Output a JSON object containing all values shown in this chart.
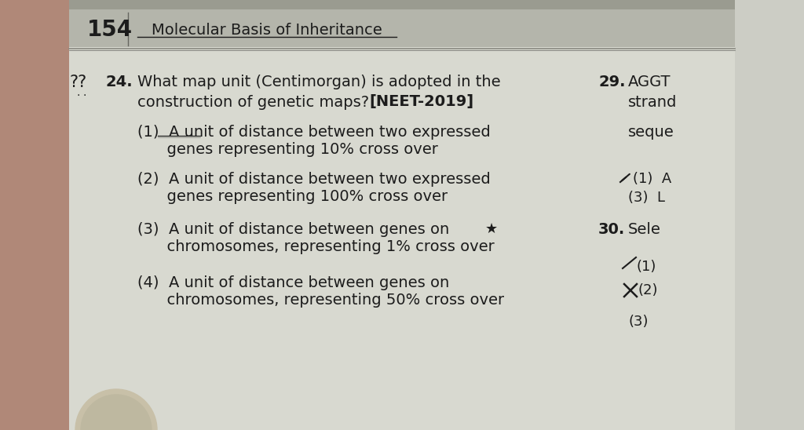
{
  "bg_left_color": "#b8907a",
  "bg_page_color": "#dcddd5",
  "bg_right_color": "#c8cac0",
  "header_bar_color": "#b0b2a8",
  "header_number": "154",
  "header_title": "Molecular Basis of Inheritance",
  "question_prefix": "??",
  "question_number": "24.",
  "q_line1": "What map unit (Centimorgan) is adopted in the",
  "q_line2": "construction of genetic maps?",
  "q_tag": "[NEET-2019]",
  "side_num": "29.",
  "side_t1": "AGGT",
  "side_t2": "strand",
  "side_t3": "seque",
  "opt1_l1": "(1)  A unit of distance between two expressed",
  "opt1_l2": "      genes representing 10% cross over",
  "opt2_l1": "(2)  A unit of distance between two expressed",
  "opt2_l2": "      genes representing 100% cross over",
  "opt3_l1": "(3)  A unit of distance between genes on",
  "opt3_l2": "      chromosomes, representing 1% cross over",
  "opt4_l1": "(4)  A unit of distance between genes on",
  "opt4_l2": "      chromosomes, representing 50% cross over",
  "right_tick1": "(1)  A",
  "right_3l": "(3)  L",
  "right_slash1": "(1)",
  "right_x2": "(2)",
  "right_3": "(3)",
  "text_color": "#1c1c1c",
  "fs_header_num": 20,
  "fs_header_title": 14,
  "fs_body": 14,
  "fs_side": 13
}
